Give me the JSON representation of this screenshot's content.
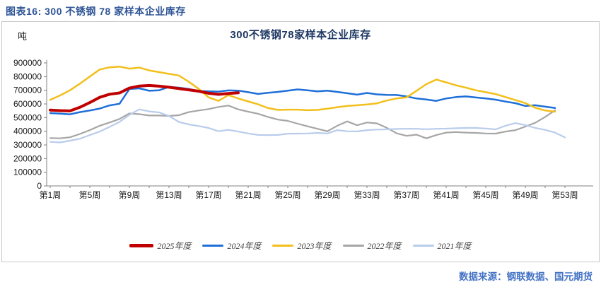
{
  "caption": "图表16: 300 不锈钢 78 家样本企业库存",
  "source": "数据来源：钢联数据、国元期货",
  "colors": {
    "caption_blue": "#2F5597",
    "title_navy": "#1F3864",
    "source_blue": "#4472C4",
    "axis_gray": "#808080",
    "tick_text": "#1a1a1a",
    "box_border": "#C9C9C9"
  },
  "chart_data": {
    "type": "line",
    "title": "300不锈钢78家样本企业库存",
    "unit_label": "吨",
    "xlabel": "",
    "ylabel": "吨",
    "ylim": [
      0,
      900000
    ],
    "grid": false,
    "legend_position": "bottom-center",
    "weeks_total": 53,
    "y_tick_labels": [
      "0",
      "100000",
      "200000",
      "300000",
      "400000",
      "500000",
      "600000",
      "700000",
      "800000",
      "900000"
    ],
    "x_tick_weeks": [
      1,
      5,
      9,
      13,
      17,
      21,
      25,
      29,
      33,
      37,
      41,
      45,
      49,
      53
    ],
    "x_tick_labels": [
      "第1周",
      "第5周",
      "第9周",
      "第13周",
      "第17周",
      "第21周",
      "第25周",
      "第29周",
      "第33周",
      "第37周",
      "第41周",
      "第45周",
      "第49周",
      "第53周"
    ],
    "series": [
      {
        "name": "2025年度",
        "color": "#C00000",
        "width": 4,
        "start_week": 1,
        "values": [
          555000,
          551000,
          549000,
          575000,
          610000,
          648000,
          671000,
          680000,
          716000,
          731000,
          735000,
          730000,
          722000,
          712000,
          703000,
          693000,
          678000,
          670000,
          676000,
          681000
        ]
      },
      {
        "name": "2024年度",
        "color": "#1E6FD8",
        "width": 2.5,
        "start_week": 1,
        "values": [
          533000,
          529000,
          524000,
          540000,
          552000,
          566000,
          589000,
          601000,
          709000,
          714000,
          696000,
          700000,
          724000,
          719000,
          709000,
          694000,
          692000,
          690000,
          699000,
          697000,
          686000,
          673000,
          681000,
          688000,
          697000,
          706000,
          700000,
          692000,
          697000,
          688000,
          678000,
          668000,
          680000,
          670000,
          666000,
          665000,
          655000,
          640000,
          632000,
          622000,
          640000,
          650000,
          655000,
          647000,
          640000,
          631000,
          617000,
          605000,
          585000,
          590000,
          580000,
          570000
        ]
      },
      {
        "name": "2023年度",
        "color": "#F2BF1C",
        "width": 2.5,
        "start_week": 1,
        "values": [
          630000,
          662000,
          700000,
          748000,
          800000,
          852000,
          868000,
          873000,
          858000,
          866000,
          845000,
          833000,
          820000,
          808000,
          762000,
          710000,
          648000,
          622000,
          664000,
          640000,
          618000,
          597000,
          570000,
          556000,
          558000,
          558000,
          554000,
          556000,
          565000,
          576000,
          585000,
          590000,
          596000,
          604000,
          625000,
          640000,
          648000,
          695000,
          745000,
          778000,
          758000,
          736000,
          719000,
          700000,
          686000,
          672000,
          650000,
          628000,
          606000,
          572000,
          552000,
          543000
        ]
      },
      {
        "name": "2022年度",
        "color": "#A6A6A6",
        "width": 2.2,
        "start_week": 1,
        "values": [
          350000,
          348000,
          356000,
          380000,
          408000,
          440000,
          464000,
          490000,
          530000,
          525000,
          515000,
          515000,
          512000,
          517000,
          540000,
          552000,
          562000,
          578000,
          588000,
          560000,
          543000,
          528000,
          505000,
          485000,
          476000,
          455000,
          436000,
          418000,
          400000,
          440000,
          472000,
          444000,
          464000,
          458000,
          425000,
          385000,
          366000,
          375000,
          348000,
          372000,
          390000,
          394000,
          390000,
          388000,
          384000,
          383000,
          398000,
          408000,
          434000,
          462000,
          505000,
          553000
        ]
      },
      {
        "name": "2021年度",
        "color": "#B9CCEC",
        "width": 2.2,
        "start_week": 1,
        "values": [
          322000,
          318000,
          331000,
          345000,
          372000,
          398000,
          432000,
          468000,
          520000,
          560000,
          545000,
          538000,
          512000,
          468000,
          450000,
          438000,
          424000,
          400000,
          410000,
          398000,
          384000,
          373000,
          372000,
          373000,
          382000,
          383000,
          384000,
          388000,
          384000,
          408000,
          400000,
          399000,
          408000,
          412000,
          414000,
          417000,
          418000,
          418000,
          415000,
          418000,
          419000,
          422000,
          424000,
          424000,
          420000,
          414000,
          440000,
          460000,
          445000,
          424000,
          410000,
          390000,
          355000
        ]
      }
    ],
    "draw_order": [
      3,
      4,
      1,
      2,
      0
    ]
  }
}
